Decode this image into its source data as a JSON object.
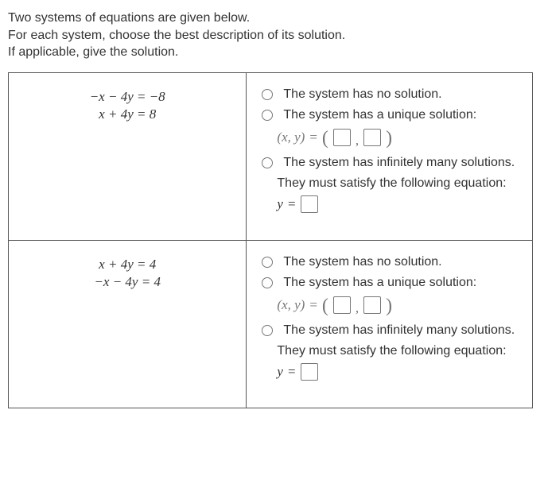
{
  "intro": {
    "line1": "Two systems of equations are given below.",
    "line2": "For each system, choose the best description of its solution.",
    "line3": "If applicable, give the solution."
  },
  "systems": [
    {
      "eq1": "−x − 4y = −8",
      "eq2": "x + 4y = 8"
    },
    {
      "eq1": "x + 4y = 4",
      "eq2": "−x − 4y = 4"
    }
  ],
  "options": {
    "no_solution": "The system has no solution.",
    "unique": "The system has a unique solution:",
    "infinite": "The system has infinitely many solutions.",
    "infinite_follow": "They must satisfy the following equation:",
    "xy_label": "(x, y)",
    "equals": "=",
    "y_label": "y"
  }
}
